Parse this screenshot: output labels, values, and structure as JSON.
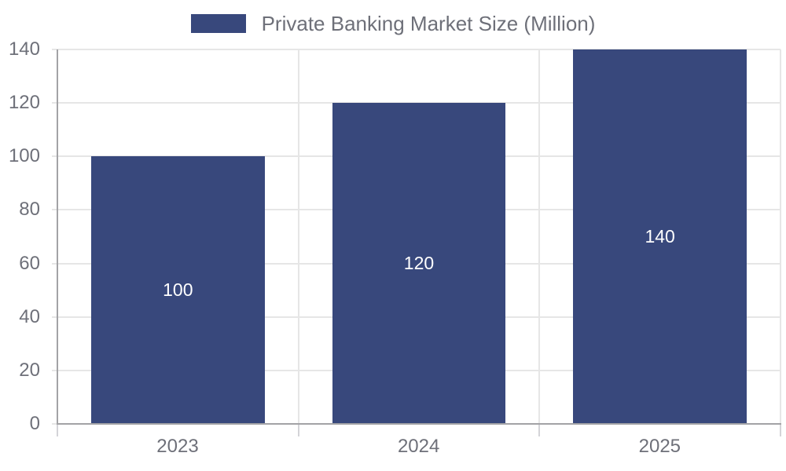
{
  "legend": {
    "label": "Private Banking Market Size (Million)",
    "swatch_color": "#38487c"
  },
  "chart_data": {
    "type": "bar",
    "title": "Private Banking Market Size (Million)",
    "categories": [
      "2023",
      "2024",
      "2025"
    ],
    "values": [
      100,
      120,
      140
    ],
    "data_labels": [
      "100",
      "120",
      "140"
    ],
    "xlabel": "",
    "ylabel": "",
    "ylim": [
      0,
      140
    ],
    "y_ticks": [
      0,
      20,
      40,
      60,
      80,
      100,
      120,
      140
    ],
    "y_tick_labels": [
      "0",
      "20",
      "40",
      "60",
      "80",
      "100",
      "120",
      "140"
    ],
    "grid": true,
    "legend_position": "top",
    "colors": {
      "bar": "#38487c",
      "bar_label": "#ffffff",
      "grid": "#e6e6e6",
      "axis": "#a3a3a6",
      "tick_text": "#6e7079"
    },
    "bar_width_fraction": 0.72
  }
}
